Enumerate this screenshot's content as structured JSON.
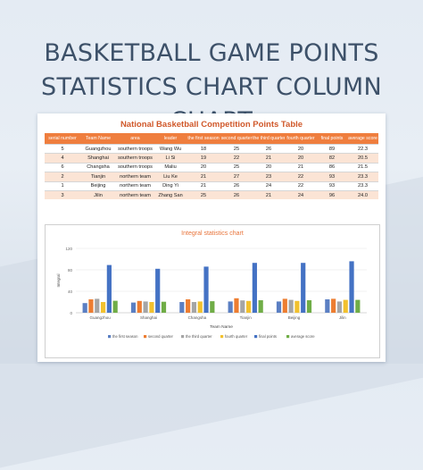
{
  "hero": {
    "line1": "BASKETBALL GAME POINTS",
    "line2": "STATISTICS CHART COLUMN CHART"
  },
  "table": {
    "title": "National Basketball Competition Points Table",
    "headers": [
      "serial number",
      "Team Name",
      "area",
      "leader",
      "the first season",
      "second quarter",
      "the third quarter",
      "fourth quarter",
      "final points",
      "average score"
    ],
    "rows": [
      [
        "5",
        "Guangzhou",
        "southern troops",
        "Wang Wu",
        "18",
        "25",
        "26",
        "20",
        "89",
        "22.3"
      ],
      [
        "4",
        "Shanghai",
        "southern troops",
        "Li Si",
        "19",
        "22",
        "21",
        "20",
        "82",
        "20.5"
      ],
      [
        "6",
        "Changsha",
        "southern troops",
        "Maliu",
        "20",
        "25",
        "20",
        "21",
        "86",
        "21.5"
      ],
      [
        "2",
        "Tianjin",
        "northern team",
        "Liu Ke",
        "21",
        "27",
        "23",
        "22",
        "93",
        "23.3"
      ],
      [
        "1",
        "Beijing",
        "northern team",
        "Ding Yi",
        "21",
        "26",
        "24",
        "22",
        "93",
        "23.3"
      ],
      [
        "3",
        "Jilin",
        "northern team",
        "Zhang San",
        "25",
        "26",
        "21",
        "24",
        "96",
        "24.0"
      ]
    ],
    "colors": {
      "header_bg": "#ef7e3e",
      "header_text": "#ffffff",
      "title": "#d0582a",
      "stripe": "#fbe4d5"
    }
  },
  "chart_data": {
    "type": "bar",
    "title": "Integral statistics chart",
    "xlabel": "Team Name",
    "ylabel": "Integral",
    "ylim": [
      0,
      120
    ],
    "yticks": [
      0,
      40,
      80,
      120
    ],
    "grid": true,
    "legend_position": "bottom",
    "categories": [
      "Guangzhou",
      "Shanghai",
      "Changsha",
      "Tianjin",
      "Beijing",
      "Jilin"
    ],
    "series": [
      {
        "name": "the first season",
        "color": "#5b7fc3",
        "values": [
          18,
          19,
          20,
          21,
          21,
          25
        ]
      },
      {
        "name": "second quarter",
        "color": "#ed7d31",
        "values": [
          25,
          22,
          25,
          27,
          26,
          26
        ]
      },
      {
        "name": "the third quarter",
        "color": "#a5a5a5",
        "values": [
          26,
          21,
          20,
          23,
          24,
          21
        ]
      },
      {
        "name": "fourth quarter",
        "color": "#f2c12e",
        "values": [
          20,
          20,
          21,
          22,
          22,
          24
        ]
      },
      {
        "name": "final points",
        "color": "#4472c4",
        "values": [
          89,
          82,
          86,
          93,
          93,
          96
        ]
      },
      {
        "name": "average score",
        "color": "#70ad47",
        "values": [
          22.3,
          20.5,
          21.5,
          23.3,
          23.3,
          24.0
        ]
      }
    ]
  }
}
